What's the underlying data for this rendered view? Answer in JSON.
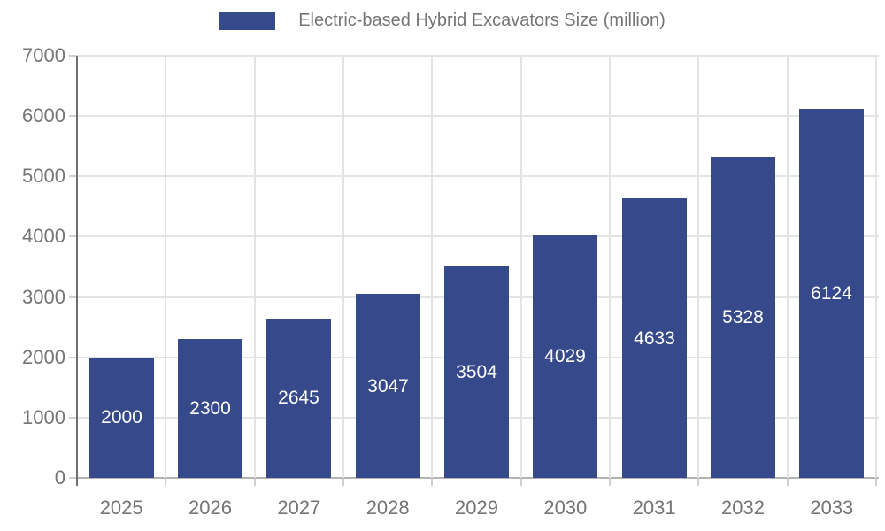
{
  "chart_data": {
    "type": "bar",
    "title": "",
    "legend_label": "Electric-based Hybrid Excavators Size (million)",
    "legend_position": "top-center",
    "categories": [
      "2025",
      "2026",
      "2027",
      "2028",
      "2029",
      "2030",
      "2031",
      "2032",
      "2033"
    ],
    "values": [
      2000,
      2300,
      2645,
      3047,
      3504,
      4029,
      4633,
      5328,
      6124
    ],
    "xlabel": "",
    "ylabel": "",
    "ylim": [
      0,
      7000
    ],
    "yticks": [
      0,
      1000,
      2000,
      3000,
      4000,
      5000,
      6000,
      7000
    ],
    "grid": true,
    "bar_labels_visible": true
  },
  "colors": {
    "bar": "#36498b",
    "bar_value_text": "#ffffff",
    "axis_text": "#757575",
    "gridline": "#e4e4e4",
    "y_spine": "#6f6f6f",
    "x_axis_line": "#b3b3b3",
    "tick_mark": "#cfcfcf",
    "background": "#ffffff"
  }
}
